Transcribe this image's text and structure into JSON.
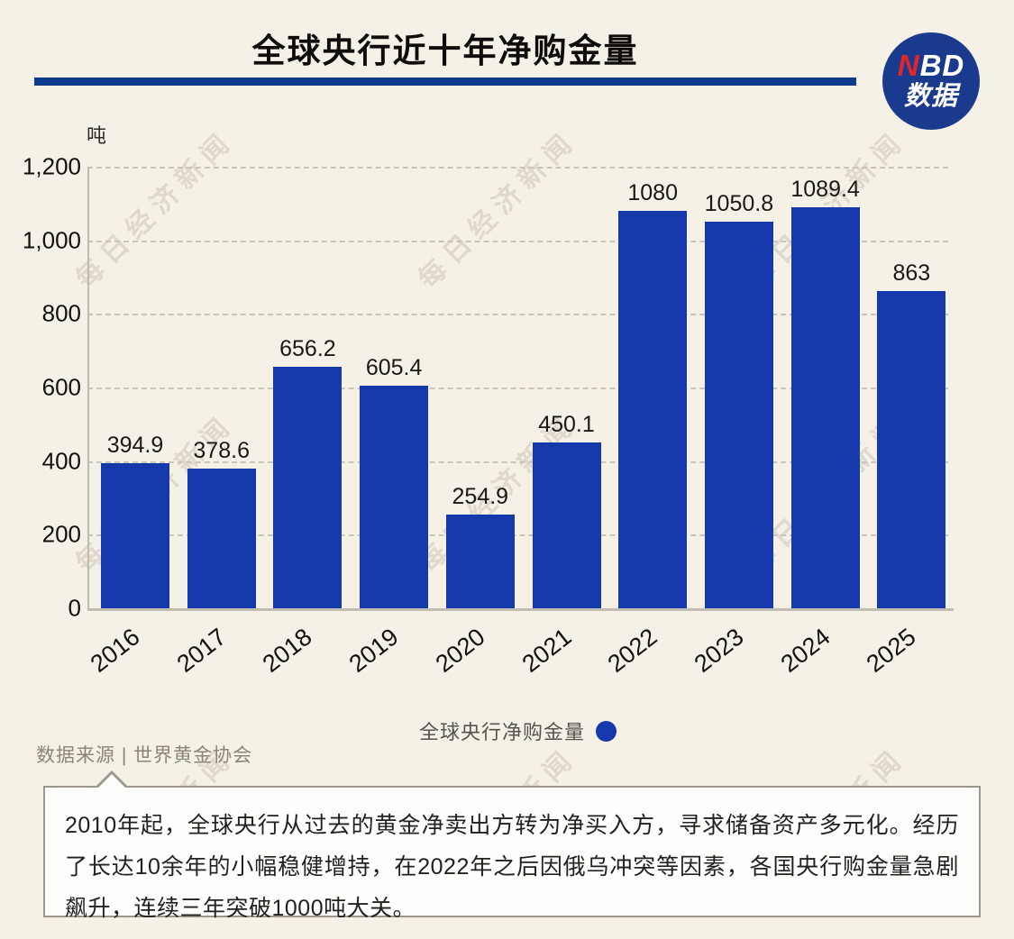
{
  "title": "全球央行近十年净购金量",
  "logo": {
    "name": "NBD数据",
    "part_red": "N",
    "part_white": "BD",
    "caption": "数据"
  },
  "legend": {
    "label": "全球央行净购金量"
  },
  "source": "数据来源 | 世界黄金协会",
  "note": "2010年起，全球央行从过去的黄金净卖出方转为净买入方，寻求储备资产多元化。经历了长达10余年的小幅稳健增持，在2022年之后因俄乌冲突等因素，各国央行购金量急剧飙升，连续三年突破1000吨大关。",
  "watermark": "每日经济新闻",
  "colors": {
    "background": "#f6f1e7",
    "bar": "#1539aa",
    "accent_line": "#0d3c8c",
    "logo_circle": "#1a3a8e",
    "logo_red": "#e0262c",
    "legend_dot": "#1539aa"
  },
  "chart_data": {
    "type": "bar",
    "categories": [
      "2016",
      "2017",
      "2018",
      "2019",
      "2020",
      "2021",
      "2022",
      "2023",
      "2024",
      "2025"
    ],
    "values": [
      394.9,
      378.6,
      656.2,
      605.4,
      254.9,
      450.1,
      1080,
      1050.8,
      1089.4,
      863
    ],
    "title": "全球央行近十年净购金量",
    "xlabel": "",
    "ylabel": "吨",
    "ylim": [
      0,
      1200
    ],
    "yticks": [
      0,
      200,
      400,
      600,
      800,
      1000,
      1200
    ],
    "grid": "horizontal-dashed",
    "legend_position": "bottom-center",
    "bar_color": "#1539aa",
    "value_labels": [
      "394.9",
      "378.6",
      "656.2",
      "605.4",
      "254.9",
      "450.1",
      "1080",
      "1050.8",
      "1089.4",
      "863"
    ]
  }
}
